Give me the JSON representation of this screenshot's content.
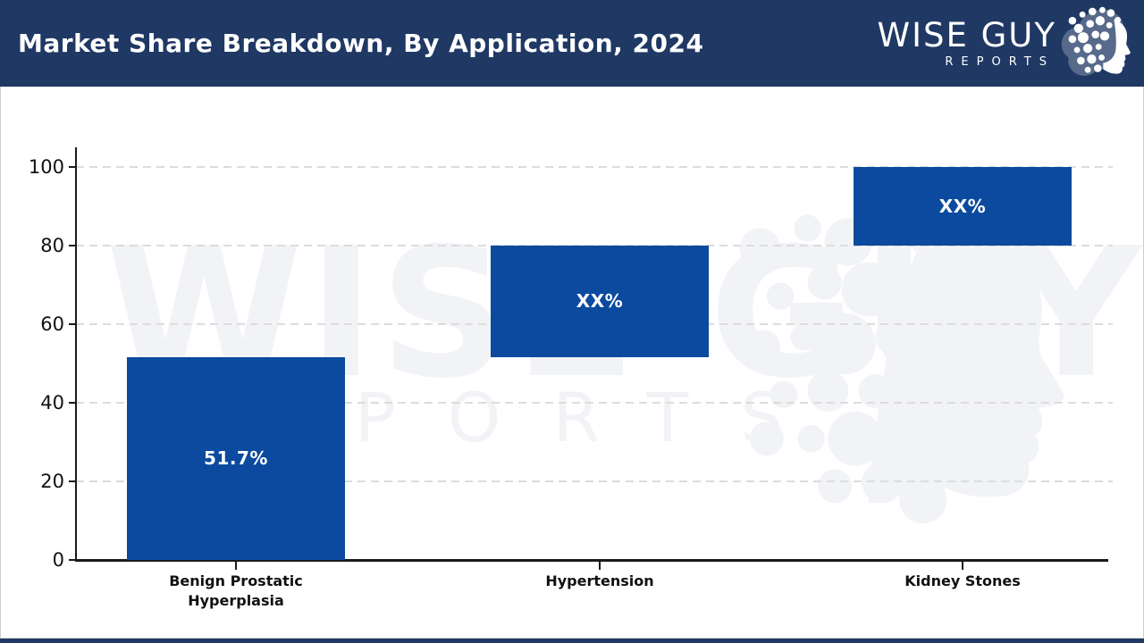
{
  "header": {
    "title": "Market Share Breakdown, By Application, 2024"
  },
  "logo": {
    "line1": "WISE GUY",
    "line2": "REPORTS"
  },
  "watermark": {
    "line1": "WISE GUY",
    "line2": "REPORTS"
  },
  "chart_data": {
    "type": "bar",
    "variant": "waterfall",
    "title": "Market Share Breakdown, By Application, 2024",
    "xlabel": "",
    "ylabel": "",
    "categories": [
      "Benign Prostatic Hyperplasia",
      "Hypertension",
      "Kidney Stones"
    ],
    "segments": [
      {
        "category": "Benign Prostatic Hyperplasia",
        "start": 0,
        "end": 51.7,
        "label": "51.7%"
      },
      {
        "category": "Hypertension",
        "start": 51.7,
        "end": 80,
        "label": "XX%"
      },
      {
        "category": "Kidney Stones",
        "start": 80,
        "end": 100,
        "label": "XX%"
      }
    ],
    "yticks": [
      0,
      20,
      40,
      60,
      80,
      100
    ],
    "ylim": [
      0,
      100
    ],
    "grid": "dashed-horizontal",
    "legend": "none",
    "bar_color": "#0b4a9e",
    "bar_label_color": "#ffffff"
  },
  "colors": {
    "header_bg": "#1f3864",
    "footer_bg": "#1f3864",
    "bar": "#0b4a9e",
    "watermark": "#f2f3f6",
    "gridline": "#dcdcdc",
    "axis": "#1a1a1a"
  }
}
